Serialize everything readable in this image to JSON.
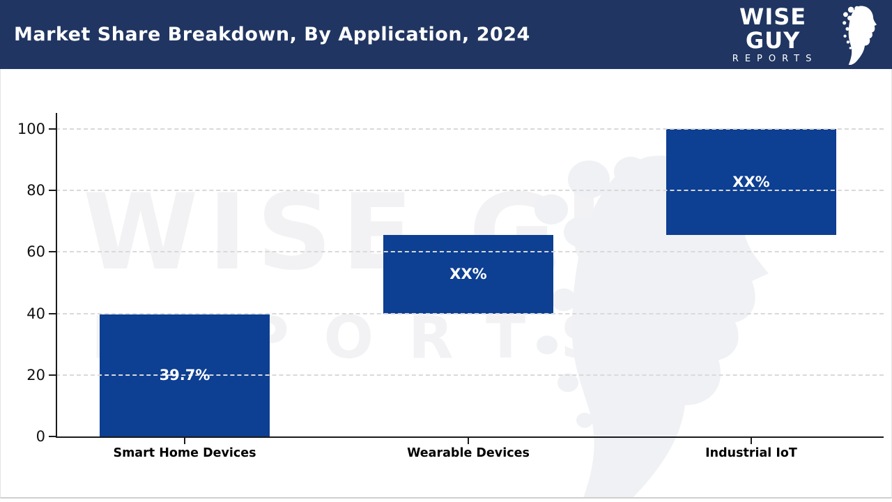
{
  "header": {
    "title": "Market Share Breakdown, By Application, 2024",
    "logo": {
      "line1": "WISE GUY",
      "line2": "REPORTS"
    }
  },
  "watermark": {
    "line1": "WISE GUY",
    "line2": "REPORTS"
  },
  "colors": {
    "header_bg": "#203561",
    "bar_blue": "#0d3f92",
    "grid_gray": "#d9d9d9",
    "axis_black": "#1a1a1a",
    "watermark_gray": "#f2f2f4",
    "value_label_white": "#ffffff"
  },
  "chart_data": {
    "type": "bar",
    "subtype": "floating-segment-waterfall",
    "title": "Market Share Breakdown, By Application, 2024",
    "categories": [
      "Smart Home Devices",
      "Wearable Devices",
      "Industrial IoT"
    ],
    "segments": [
      {
        "category": "Smart Home Devices",
        "start": 0,
        "end": 39.7,
        "label": "39.7%"
      },
      {
        "category": "Wearable Devices",
        "start": 39.9,
        "end": 65.6,
        "label": "XX%"
      },
      {
        "category": "Industrial IoT",
        "start": 65.6,
        "end": 100,
        "label": "XX%"
      }
    ],
    "xlabel": "",
    "ylabel": "",
    "ylim": [
      0,
      105
    ],
    "yticks": [
      0,
      20,
      40,
      60,
      80,
      100
    ],
    "grid": "horizontal dashed, drawn above bars",
    "legend": "none",
    "bar_color": "#0d3f92"
  }
}
